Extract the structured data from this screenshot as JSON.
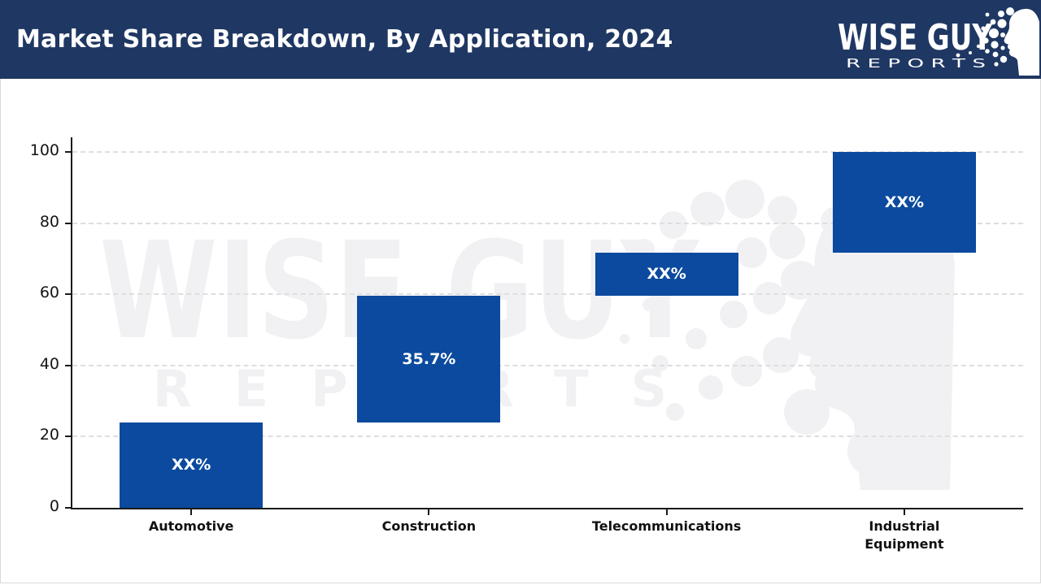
{
  "header": {
    "title": "Market Share Breakdown, By Application, 2024",
    "logo": {
      "line1": "WISE GUY",
      "line2": "R E P O R T S"
    }
  },
  "watermark": {
    "line1": "WISE GUY",
    "line2": "REPORTS"
  },
  "chart_data": {
    "type": "bar",
    "subtype": "waterfall",
    "title": "Market Share Breakdown, By Application, 2024",
    "categories": [
      "Automotive",
      "Construction",
      "Telecommunications",
      "Industrial\nEquipment"
    ],
    "starts": [
      0,
      24,
      59.7,
      71.6
    ],
    "ends": [
      24,
      59.7,
      71.6,
      100
    ],
    "values": [
      24,
      35.7,
      11.9,
      28.4
    ],
    "bar_labels": [
      "XX%",
      "35.7%",
      "XX%",
      "XX%"
    ],
    "yticks": [
      0,
      20,
      40,
      60,
      80,
      100
    ],
    "ylim": [
      0,
      100
    ],
    "xlabel": "",
    "ylabel": "",
    "grid": "horizontal-dashed",
    "legend": "none",
    "bar_color": "#0b4a9e",
    "label_color": "#ffffff",
    "header_color": "#1f3763",
    "axis_color": "#1a1a1a",
    "gridline_color": "#dedede",
    "watermark_color": "#f1f1f4"
  }
}
